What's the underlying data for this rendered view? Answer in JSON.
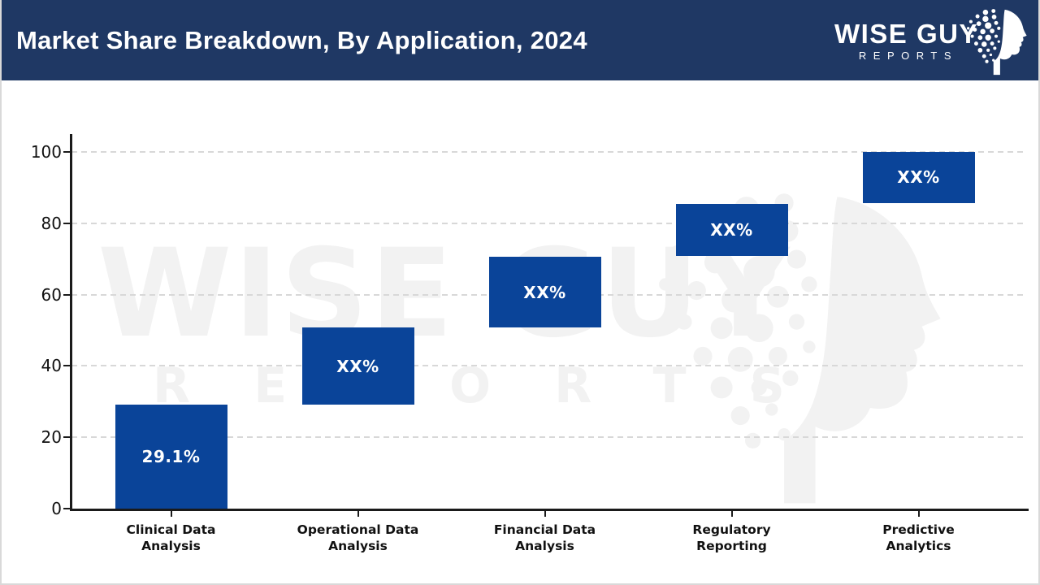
{
  "header": {
    "title": "Market Share Breakdown, By Application, 2024",
    "logo": {
      "wordmark": "WISE GUY",
      "subtext": "REPORTS",
      "icon": "dotted-head-profile-icon"
    }
  },
  "watermark": {
    "line1": "WISE GUY",
    "line2": "REPORTS"
  },
  "colors": {
    "header_bg": "#1f3864",
    "bar_blue": "#0a4499",
    "grid": "#d8d8d8",
    "axis": "#1a1a1a",
    "watermark": "#f2f2f2",
    "page_border": "#d9d9d9",
    "title_text": "#ffffff",
    "bar_label_text": "#ffffff"
  },
  "chart_data": {
    "type": "bar",
    "subtype": "floating-waterfall",
    "title": "Market Share Breakdown, By Application, 2024",
    "categories": [
      "Clinical Data\nAnalysis",
      "Operational Data\nAnalysis",
      "Financial Data\nAnalysis",
      "Regulatory\nReporting",
      "Predictive\nAnalytics"
    ],
    "segments": [
      {
        "start": 0,
        "end": 29.1,
        "label": "29.1%"
      },
      {
        "start": 29.1,
        "end": 50.7,
        "label": "XX%"
      },
      {
        "start": 50.7,
        "end": 70.7,
        "label": "XX%"
      },
      {
        "start": 70.9,
        "end": 85.5,
        "label": "XX%"
      },
      {
        "start": 85.7,
        "end": 100,
        "label": "XX%"
      }
    ],
    "yticks": [
      0,
      20,
      40,
      60,
      80,
      100
    ],
    "ylim": [
      0,
      105
    ],
    "xlabel": "",
    "ylabel": "",
    "grid": "horizontal-dashed",
    "legend_position": "none",
    "bar_color": "#0a4499",
    "value_label_color": "#ffffff"
  }
}
